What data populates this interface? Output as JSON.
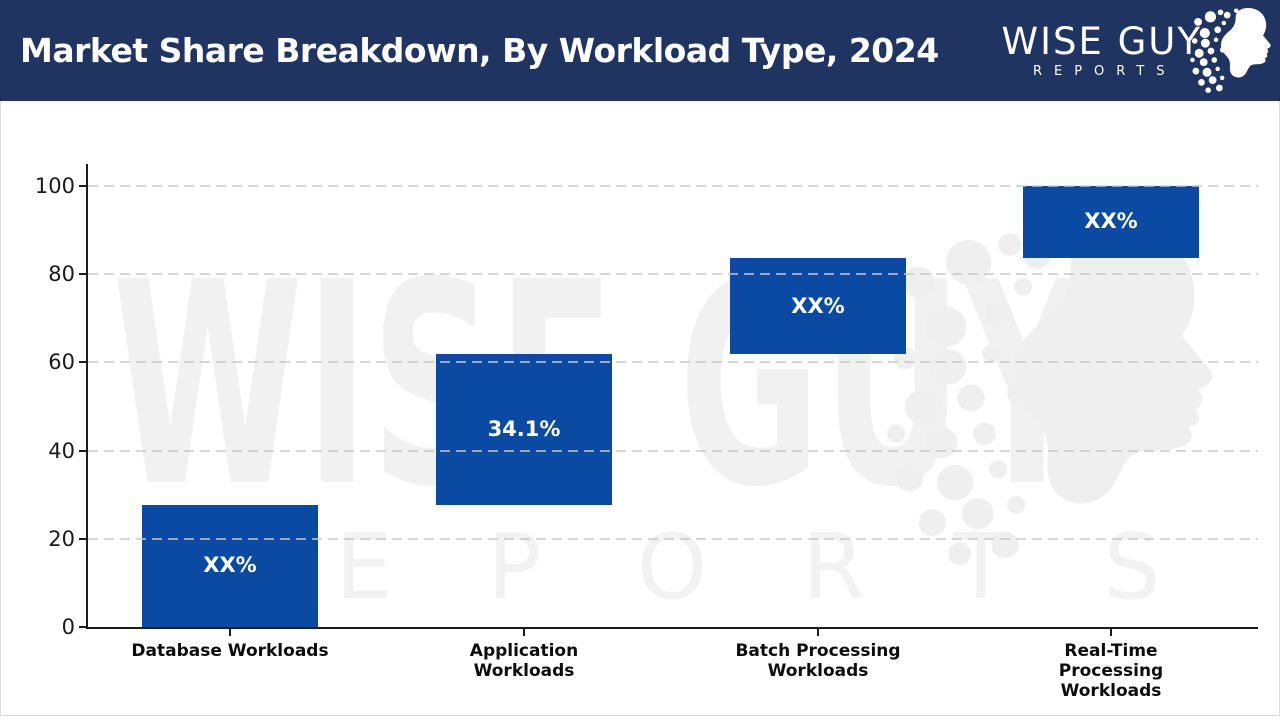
{
  "header": {
    "title": "Market Share Breakdown, By Workload Type, 2024",
    "logo_name": "WISE GUY",
    "logo_sub": "REPORTS"
  },
  "watermark": {
    "line1": "WISE GUY",
    "line2": "REPORTS"
  },
  "chart_data": {
    "type": "bar",
    "subtype": "stacked-waterfall-segments",
    "title": "Market Share Breakdown, By Workload Type, 2024",
    "categories": [
      "Database Workloads",
      "Application\nWorkloads",
      "Batch Processing\nWorkloads",
      "Real-Time\nProcessing\nWorkloads"
    ],
    "values": [
      27.7,
      34.1,
      21.9,
      16.3
    ],
    "segment_ranges": [
      [
        0,
        27.7
      ],
      [
        27.7,
        61.8
      ],
      [
        61.8,
        83.7
      ],
      [
        83.7,
        100
      ]
    ],
    "bar_labels": [
      "XX%",
      "34.1%",
      "XX%",
      "XX%"
    ],
    "y_ticks": [
      0,
      20,
      40,
      60,
      80,
      100
    ],
    "ylim": [
      0,
      105
    ],
    "xlabel": "",
    "ylabel": "",
    "grid": "horizontal-dashed",
    "legend": "none",
    "bar_color": "#0b4aa2",
    "bar_label_color": "#ffffff",
    "axis_color": "#1c1c1c",
    "header_color": "#1f3461"
  }
}
